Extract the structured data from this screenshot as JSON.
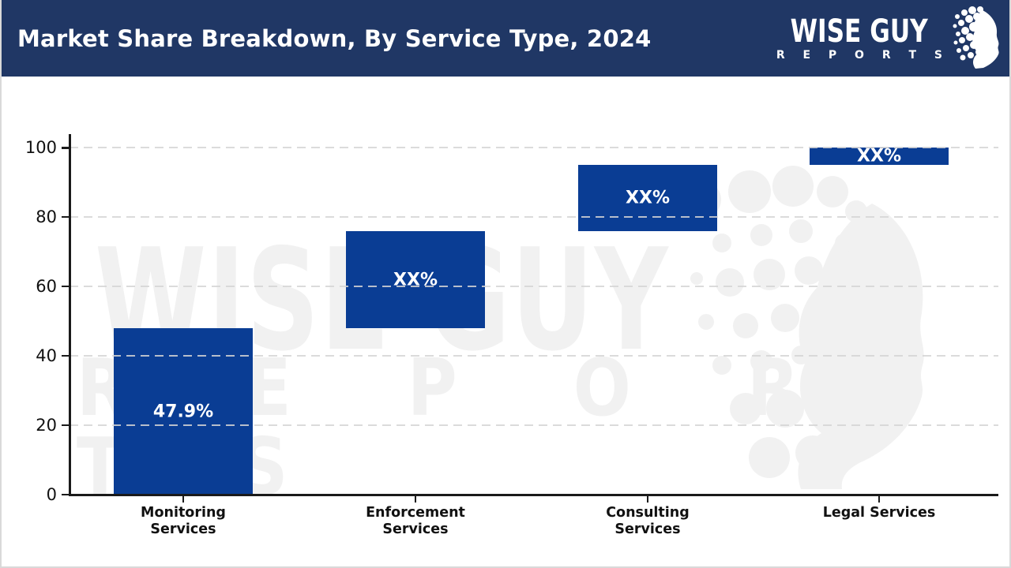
{
  "header": {
    "title": "Market Share Breakdown, By Service Type, 2024",
    "logo_line1": "WISE GUY",
    "logo_line2": "R E P O R T S"
  },
  "watermark": {
    "line1": "WISE GUY",
    "line2": "R E P O R T S"
  },
  "colors": {
    "header_bg": "#203765",
    "bar": "#0A3D94",
    "axis": "#1A1A1A",
    "grid": "#D5D5D5",
    "watermark": "#F1F1F1",
    "page_border": "#D9D9D9"
  },
  "chart_data": {
    "type": "bar",
    "variant": "waterfall",
    "title": "Market Share Breakdown, By Service Type, 2024",
    "xlabel": "",
    "ylabel": "",
    "legend": null,
    "grid": "horizontal-dashed",
    "ylim": [
      0,
      104
    ],
    "yticks": [
      0,
      20,
      40,
      60,
      80,
      100
    ],
    "categories": [
      [
        "Monitoring",
        "Services"
      ],
      [
        "Enforcement",
        "Services"
      ],
      [
        "Consulting",
        "Services"
      ],
      [
        "Legal Services"
      ]
    ],
    "segments": [
      {
        "category": "Monitoring Services",
        "label": "47.9%",
        "start": 0,
        "end": 47.9,
        "value": 47.9
      },
      {
        "category": "Enforcement Services",
        "label": "XX%",
        "start": 47.9,
        "end": 76,
        "value": 28.1
      },
      {
        "category": "Consulting Services",
        "label": "XX%",
        "start": 76,
        "end": 95,
        "value": 19
      },
      {
        "category": "Legal Services",
        "label": "XX%",
        "start": 95,
        "end": 100,
        "value": 5
      }
    ]
  }
}
